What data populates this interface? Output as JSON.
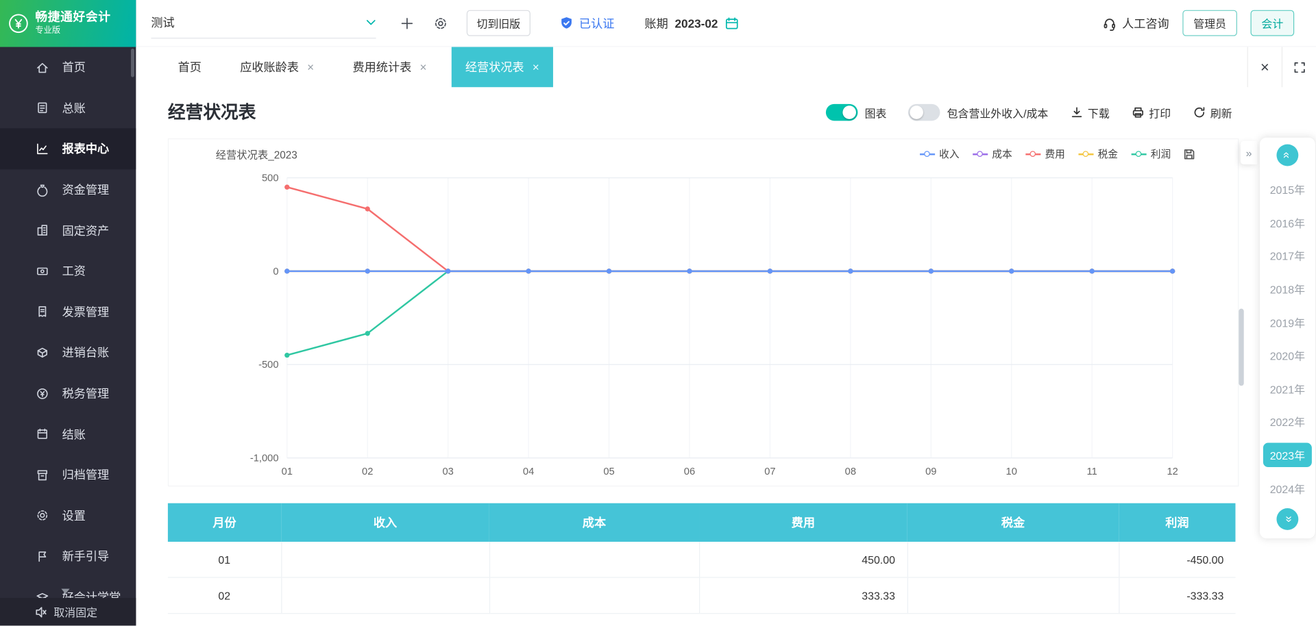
{
  "header": {
    "logo_title": "畅捷通好会计",
    "logo_subtitle": "专业版",
    "workspace": "测试",
    "switch_old_label": "切到旧版",
    "certified_label": "已认证",
    "period_label": "账期",
    "period_value": "2023-02",
    "consult_label": "人工咨询",
    "admin_label": "管理员",
    "accountant_label": "会计"
  },
  "sidebar": {
    "items": [
      {
        "label": "首页",
        "icon": "home-icon"
      },
      {
        "label": "总账",
        "icon": "ledger-icon"
      },
      {
        "label": "报表中心",
        "icon": "report-icon",
        "active": true
      },
      {
        "label": "资金管理",
        "icon": "fund-icon"
      },
      {
        "label": "固定资产",
        "icon": "asset-icon"
      },
      {
        "label": "工资",
        "icon": "salary-icon"
      },
      {
        "label": "发票管理",
        "icon": "invoice-icon"
      },
      {
        "label": "进销台账",
        "icon": "stock-icon"
      },
      {
        "label": "税务管理",
        "icon": "tax-icon"
      },
      {
        "label": "结账",
        "icon": "closing-icon"
      },
      {
        "label": "归档管理",
        "icon": "archive-icon"
      },
      {
        "label": "设置",
        "icon": "settings-icon"
      },
      {
        "label": "新手引导",
        "icon": "guide-icon"
      },
      {
        "label": "好会计学堂",
        "icon": "school-icon",
        "partial": true
      }
    ],
    "unpin_label": "取消固定"
  },
  "tabs": [
    {
      "label": "首页",
      "closable": false
    },
    {
      "label": "应收账龄表",
      "closable": true
    },
    {
      "label": "费用统计表",
      "closable": true
    },
    {
      "label": "经营状况表",
      "closable": true,
      "active": true
    }
  ],
  "page": {
    "title": "经营状况表",
    "toggle_chart_label": "图表",
    "toggle_include_label": "包含营业外收入/成本",
    "download_label": "下载",
    "print_label": "打印",
    "refresh_label": "刷新"
  },
  "chart_data": {
    "type": "line",
    "title": "经营状况表_2023",
    "x": [
      "01",
      "02",
      "03",
      "04",
      "05",
      "06",
      "07",
      "08",
      "09",
      "10",
      "11",
      "12"
    ],
    "ylim": [
      -1000,
      500
    ],
    "yticks": [
      500,
      0,
      -500,
      -1000
    ],
    "grid": true,
    "legend_position": "top-right",
    "series": [
      {
        "name": "收入",
        "color": "#6495f8",
        "values": [
          0,
          0,
          0,
          0,
          0,
          0,
          0,
          0,
          0,
          0,
          0,
          0
        ]
      },
      {
        "name": "成本",
        "color": "#9a6ce8",
        "values": [
          0,
          0,
          0,
          0,
          0,
          0,
          0,
          0,
          0,
          0,
          0,
          0
        ]
      },
      {
        "name": "费用",
        "color": "#f56e6e",
        "values": [
          450,
          333.33,
          0,
          0,
          0,
          0,
          0,
          0,
          0,
          0,
          0,
          0
        ]
      },
      {
        "name": "税金",
        "color": "#f3c53d",
        "values": [
          0,
          0,
          0,
          0,
          0,
          0,
          0,
          0,
          0,
          0,
          0,
          0
        ]
      },
      {
        "name": "利润",
        "color": "#2fc7a2",
        "values": [
          -450,
          -333.33,
          0,
          0,
          0,
          0,
          0,
          0,
          0,
          0,
          0,
          0
        ]
      }
    ]
  },
  "table": {
    "headers": [
      "月份",
      "收入",
      "成本",
      "费用",
      "税金",
      "利润"
    ],
    "rows": [
      [
        "01",
        "",
        "",
        "450.00",
        "",
        "-450.00"
      ],
      [
        "02",
        "",
        "",
        "333.33",
        "",
        "-333.33"
      ]
    ]
  },
  "year_panel": {
    "years": [
      "2015年",
      "2016年",
      "2017年",
      "2018年",
      "2019年",
      "2020年",
      "2021年",
      "2022年",
      "2023年",
      "2024年"
    ],
    "active_year": "2023年"
  },
  "colors": {
    "accent": "#00b7ad",
    "tab_active": "#3ec5d2",
    "table_header": "#45c4d7",
    "sidebar_bg": "#2b2b38"
  }
}
